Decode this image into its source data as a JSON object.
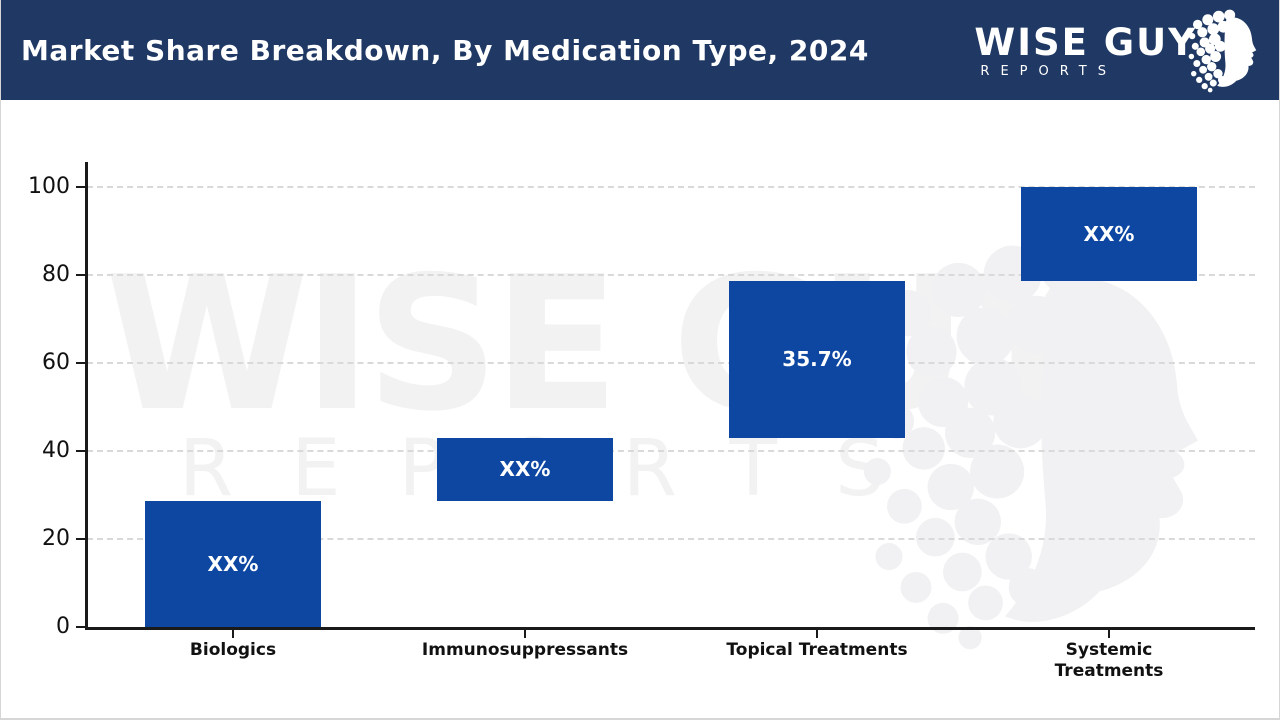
{
  "header": {
    "title": "Market Share Breakdown, By Medication Type, 2024",
    "bg_color": "#1f3864",
    "logo": {
      "wordmark": "WISE GUY",
      "subtitle": "REPORTS",
      "icon": "dotted-head-icon"
    }
  },
  "watermark": {
    "wordmark": "WISE GUY",
    "subtitle": "REPORTS",
    "icon": "dotted-head-icon"
  },
  "chart_data": {
    "type": "bar",
    "subtype": "waterfall-percentage-breakdown",
    "title": "Market Share Breakdown, By Medication Type, 2024",
    "categories": [
      "Biologics",
      "Immunosuppressants",
      "Topical Treatments",
      "Systemic Treatments"
    ],
    "category_display_labels": [
      "Biologics",
      "Immunosuppressants",
      "Topical Treatments",
      "Systemic\nTreatments"
    ],
    "segments": [
      {
        "category": "Biologics",
        "start": 0,
        "end": 28.6,
        "span": 28.6,
        "value_label": "XX%"
      },
      {
        "category": "Immunosuppressants",
        "start": 28.6,
        "end": 43.0,
        "span": 14.4,
        "value_label": "XX%"
      },
      {
        "category": "Topical Treatments",
        "start": 43.0,
        "end": 78.7,
        "span": 35.7,
        "value_label": "35.7%",
        "value": 35.7
      },
      {
        "category": "Systemic Treatments",
        "start": 78.7,
        "end": 100,
        "span": 21.3,
        "value_label": "XX%"
      }
    ],
    "xlabel": "",
    "ylabel": "",
    "yticks": [
      0,
      20,
      40,
      60,
      80,
      100
    ],
    "ylim": [
      0,
      105
    ],
    "grid": "horizontal-dashed",
    "legend": "none",
    "bar_color": "#0d47a1",
    "bar_label_color": "#ffffff",
    "axis_color": "#1a1a1a",
    "grid_color": "#d9d9d9",
    "tick_label_color": "#111111"
  }
}
